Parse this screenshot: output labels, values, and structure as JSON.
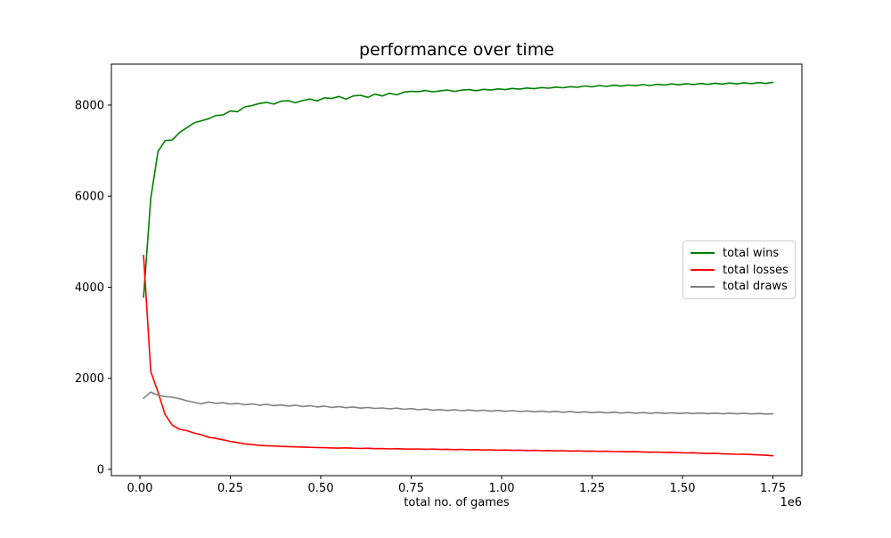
{
  "figure": {
    "title": "performance over time",
    "xlabel": "total no. of games",
    "x_offset_label": "1e6",
    "background_color": "#ffffff",
    "spine_color": "#000000"
  },
  "chart_data": {
    "type": "line",
    "title": "performance over time",
    "xlabel": "total no. of games",
    "ylabel": "",
    "x_offset_label": "1e6",
    "grid": false,
    "legend": {
      "position": "center right",
      "entries": [
        "total wins",
        "total losses",
        "total draws"
      ]
    },
    "xlim": [
      -78800,
      1830000
    ],
    "ylim": [
      -137,
      8899
    ],
    "xticks": {
      "values": [
        0,
        250000,
        500000,
        750000,
        1000000,
        1250000,
        1500000,
        1750000
      ],
      "labels": [
        "0.00",
        "0.25",
        "0.50",
        "0.75",
        "1.00",
        "1.25",
        "1.50",
        "1.75"
      ]
    },
    "yticks": {
      "values": [
        0,
        2000,
        4000,
        6000,
        8000
      ],
      "labels": [
        "0",
        "2000",
        "4000",
        "6000",
        "8000"
      ]
    },
    "x": [
      10000,
      30000,
      50000,
      70000,
      90000,
      110000,
      130000,
      150000,
      170000,
      190000,
      210000,
      230000,
      250000,
      270000,
      290000,
      310000,
      330000,
      350000,
      370000,
      390000,
      410000,
      430000,
      450000,
      470000,
      490000,
      510000,
      530000,
      550000,
      570000,
      590000,
      610000,
      630000,
      650000,
      670000,
      690000,
      710000,
      730000,
      750000,
      770000,
      790000,
      810000,
      830000,
      850000,
      870000,
      890000,
      910000,
      930000,
      950000,
      970000,
      990000,
      1010000,
      1030000,
      1050000,
      1070000,
      1090000,
      1110000,
      1130000,
      1150000,
      1170000,
      1190000,
      1210000,
      1230000,
      1250000,
      1270000,
      1290000,
      1310000,
      1330000,
      1350000,
      1370000,
      1390000,
      1410000,
      1430000,
      1450000,
      1470000,
      1490000,
      1510000,
      1530000,
      1550000,
      1570000,
      1590000,
      1610000,
      1630000,
      1650000,
      1670000,
      1690000,
      1710000,
      1730000,
      1750000
    ],
    "series": [
      {
        "name": "total wins",
        "color": "#008000",
        "values": [
          3780,
          5950,
          6980,
          7220,
          7235,
          7400,
          7505,
          7610,
          7655,
          7700,
          7770,
          7785,
          7870,
          7855,
          7960,
          7990,
          8035,
          8060,
          8020,
          8085,
          8095,
          8050,
          8100,
          8135,
          8090,
          8160,
          8145,
          8190,
          8130,
          8200,
          8215,
          8170,
          8240,
          8200,
          8260,
          8225,
          8285,
          8300,
          8295,
          8320,
          8290,
          8310,
          8330,
          8300,
          8330,
          8340,
          8315,
          8345,
          8330,
          8355,
          8340,
          8365,
          8350,
          8375,
          8360,
          8385,
          8370,
          8395,
          8380,
          8405,
          8390,
          8420,
          8400,
          8430,
          8410,
          8435,
          8415,
          8440,
          8425,
          8450,
          8430,
          8455,
          8440,
          8465,
          8445,
          8470,
          8450,
          8475,
          8455,
          8480,
          8460,
          8485,
          8465,
          8490,
          8470,
          8495,
          8475,
          8500
        ]
      },
      {
        "name": "total losses",
        "color": "#ff0000",
        "values": [
          4700,
          2150,
          1700,
          1200,
          970,
          880,
          850,
          800,
          760,
          705,
          680,
          650,
          615,
          590,
          560,
          545,
          530,
          520,
          515,
          505,
          500,
          495,
          490,
          485,
          480,
          478,
          472,
          468,
          473,
          465,
          460,
          465,
          455,
          458,
          450,
          455,
          448,
          445,
          450,
          442,
          446,
          438,
          442,
          435,
          438,
          430,
          434,
          427,
          430,
          422,
          426,
          418,
          422,
          415,
          418,
          410,
          414,
          407,
          410,
          403,
          406,
          399,
          402,
          395,
          398,
          391,
          394,
          387,
          390,
          383,
          378,
          381,
          373,
          376,
          368,
          362,
          365,
          356,
          350,
          353,
          344,
          338,
          332,
          335,
          326,
          318,
          310,
          300
        ]
      },
      {
        "name": "total draws",
        "color": "#808080",
        "values": [
          1560,
          1700,
          1630,
          1600,
          1585,
          1550,
          1505,
          1475,
          1440,
          1480,
          1450,
          1465,
          1435,
          1450,
          1420,
          1440,
          1410,
          1430,
          1400,
          1415,
          1390,
          1410,
          1380,
          1400,
          1370,
          1390,
          1360,
          1380,
          1355,
          1370,
          1345,
          1360,
          1340,
          1350,
          1330,
          1345,
          1320,
          1335,
          1310,
          1325,
          1300,
          1315,
          1295,
          1310,
          1290,
          1305,
          1285,
          1300,
          1280,
          1295,
          1275,
          1290,
          1270,
          1285,
          1265,
          1280,
          1260,
          1275,
          1255,
          1270,
          1250,
          1265,
          1245,
          1260,
          1240,
          1255,
          1238,
          1252,
          1235,
          1248,
          1232,
          1245,
          1230,
          1242,
          1228,
          1240,
          1226,
          1238,
          1224,
          1236,
          1222,
          1234,
          1220,
          1232,
          1218,
          1228,
          1216,
          1220
        ]
      }
    ]
  }
}
